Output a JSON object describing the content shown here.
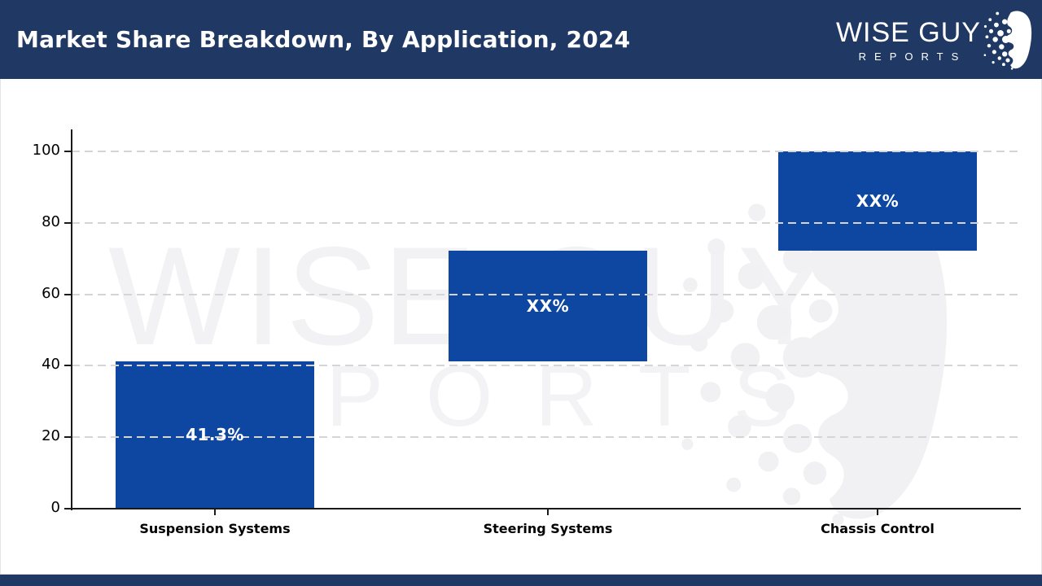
{
  "header": {
    "title": "Market Share Breakdown, By Application, 2024",
    "logo": {
      "line1": "WISE GUY",
      "line2": "REPORTS"
    }
  },
  "watermark": {
    "line1": "WISE GUY",
    "line2": "REPORTS"
  },
  "chart_data": {
    "type": "bar",
    "subtype": "waterfall-stacked",
    "title": "Market Share Breakdown, By Application, 2024",
    "categories": [
      "Suspension Systems",
      "Steering Systems",
      "Chassis Control"
    ],
    "series": [
      {
        "name": "Market share by application (%)",
        "segments": [
          {
            "category": "Suspension Systems",
            "start": 0,
            "end": 41.3,
            "label": "41.3%"
          },
          {
            "category": "Steering Systems",
            "start": 41.3,
            "end": 72.3,
            "label": "XX%"
          },
          {
            "category": "Chassis Control",
            "start": 72.3,
            "end": 100,
            "label": "XX%"
          }
        ]
      }
    ],
    "xlabel": "",
    "ylabel": "",
    "y_ticks": [
      0,
      20,
      40,
      60,
      80,
      100
    ],
    "ylim": [
      0,
      106
    ],
    "grid": {
      "horizontal": true,
      "style": "dashed",
      "color": "#d5d5d5",
      "drawn_over_bars": true
    },
    "legend": "none",
    "bar_color": "#0d47a1",
    "bar_label_color": "#ffffff"
  },
  "colors": {
    "header_bg": "#1f3864",
    "footer_bg": "#1f3864",
    "bar": "#0d47a1",
    "axis": "#1a1a1a",
    "gridline": "#d5d5d5",
    "watermark": "#f2f2f4",
    "title_text": "#ffffff",
    "tick_text": "#000000"
  }
}
